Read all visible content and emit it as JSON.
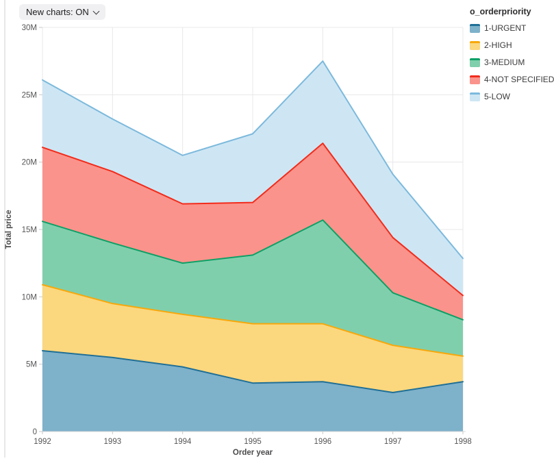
{
  "toolbar": {
    "new_charts_label": "New charts: ON"
  },
  "chart_data": {
    "type": "area",
    "stacked": true,
    "title": "",
    "xlabel": "Order year",
    "ylabel": "Total price",
    "x": [
      1992,
      1993,
      1994,
      1995,
      1996,
      1997,
      1998
    ],
    "x_tick_labels": [
      "1992",
      "1993",
      "1994",
      "1995",
      "1996",
      "1997",
      "1998"
    ],
    "y_tick_labels": [
      "0",
      "5M",
      "10M",
      "15M",
      "20M",
      "25M",
      "30M"
    ],
    "y_ticks_millions": [
      0,
      5,
      10,
      15,
      20,
      25,
      30
    ],
    "ylim_millions": [
      0,
      30
    ],
    "grid": true,
    "legend": {
      "title": "o_orderpriority",
      "position": "right"
    },
    "series": [
      {
        "name": "1-URGENT",
        "line_color": "#1F6F96",
        "fill_color": "#7EB1CA",
        "values_millions": [
          6.0,
          5.5,
          4.8,
          3.6,
          3.7,
          2.9,
          3.7
        ]
      },
      {
        "name": "2-HIGH",
        "line_color": "#F7A80B",
        "fill_color": "#FBD77E",
        "values_millions": [
          4.9,
          4.0,
          3.9,
          4.4,
          4.3,
          3.5,
          1.9
        ]
      },
      {
        "name": "3-MEDIUM",
        "line_color": "#0DA066",
        "fill_color": "#80CFAC",
        "values_millions": [
          4.7,
          4.5,
          3.8,
          5.1,
          7.7,
          3.9,
          2.7
        ]
      },
      {
        "name": "4-NOT SPECIFIED",
        "line_color": "#F22B1B",
        "fill_color": "#FA938B",
        "values_millions": [
          5.5,
          5.3,
          4.4,
          3.9,
          5.7,
          4.1,
          1.8
        ]
      },
      {
        "name": "5-LOW",
        "line_color": "#7CB9DC",
        "fill_color": "#CEE6F4",
        "values_millions": [
          5.0,
          3.9,
          3.6,
          5.1,
          6.1,
          4.7,
          2.75
        ]
      }
    ],
    "cumulative_tops_millions": {
      "1-URGENT": [
        6.0,
        5.5,
        4.8,
        3.6,
        3.7,
        2.9,
        3.7
      ],
      "2-HIGH": [
        10.9,
        9.5,
        8.7,
        8.0,
        8.0,
        6.4,
        5.6
      ],
      "3-MEDIUM": [
        15.6,
        14.0,
        12.5,
        13.1,
        15.7,
        10.3,
        8.3
      ],
      "4-NOT SPECIFIED": [
        21.1,
        19.3,
        16.9,
        17.0,
        21.4,
        14.4,
        10.1
      ],
      "5-LOW": [
        26.1,
        23.2,
        20.5,
        22.1,
        27.5,
        19.1,
        12.85
      ]
    },
    "style": {
      "gridline_color": "#e8e8e8",
      "axis_line_color": "#d9d9d9",
      "tick_color": "#c9c9c9",
      "tick_label_color": "#555557",
      "axis_title_color": "#4a4a4c",
      "plot_background": "#ffffff"
    }
  }
}
